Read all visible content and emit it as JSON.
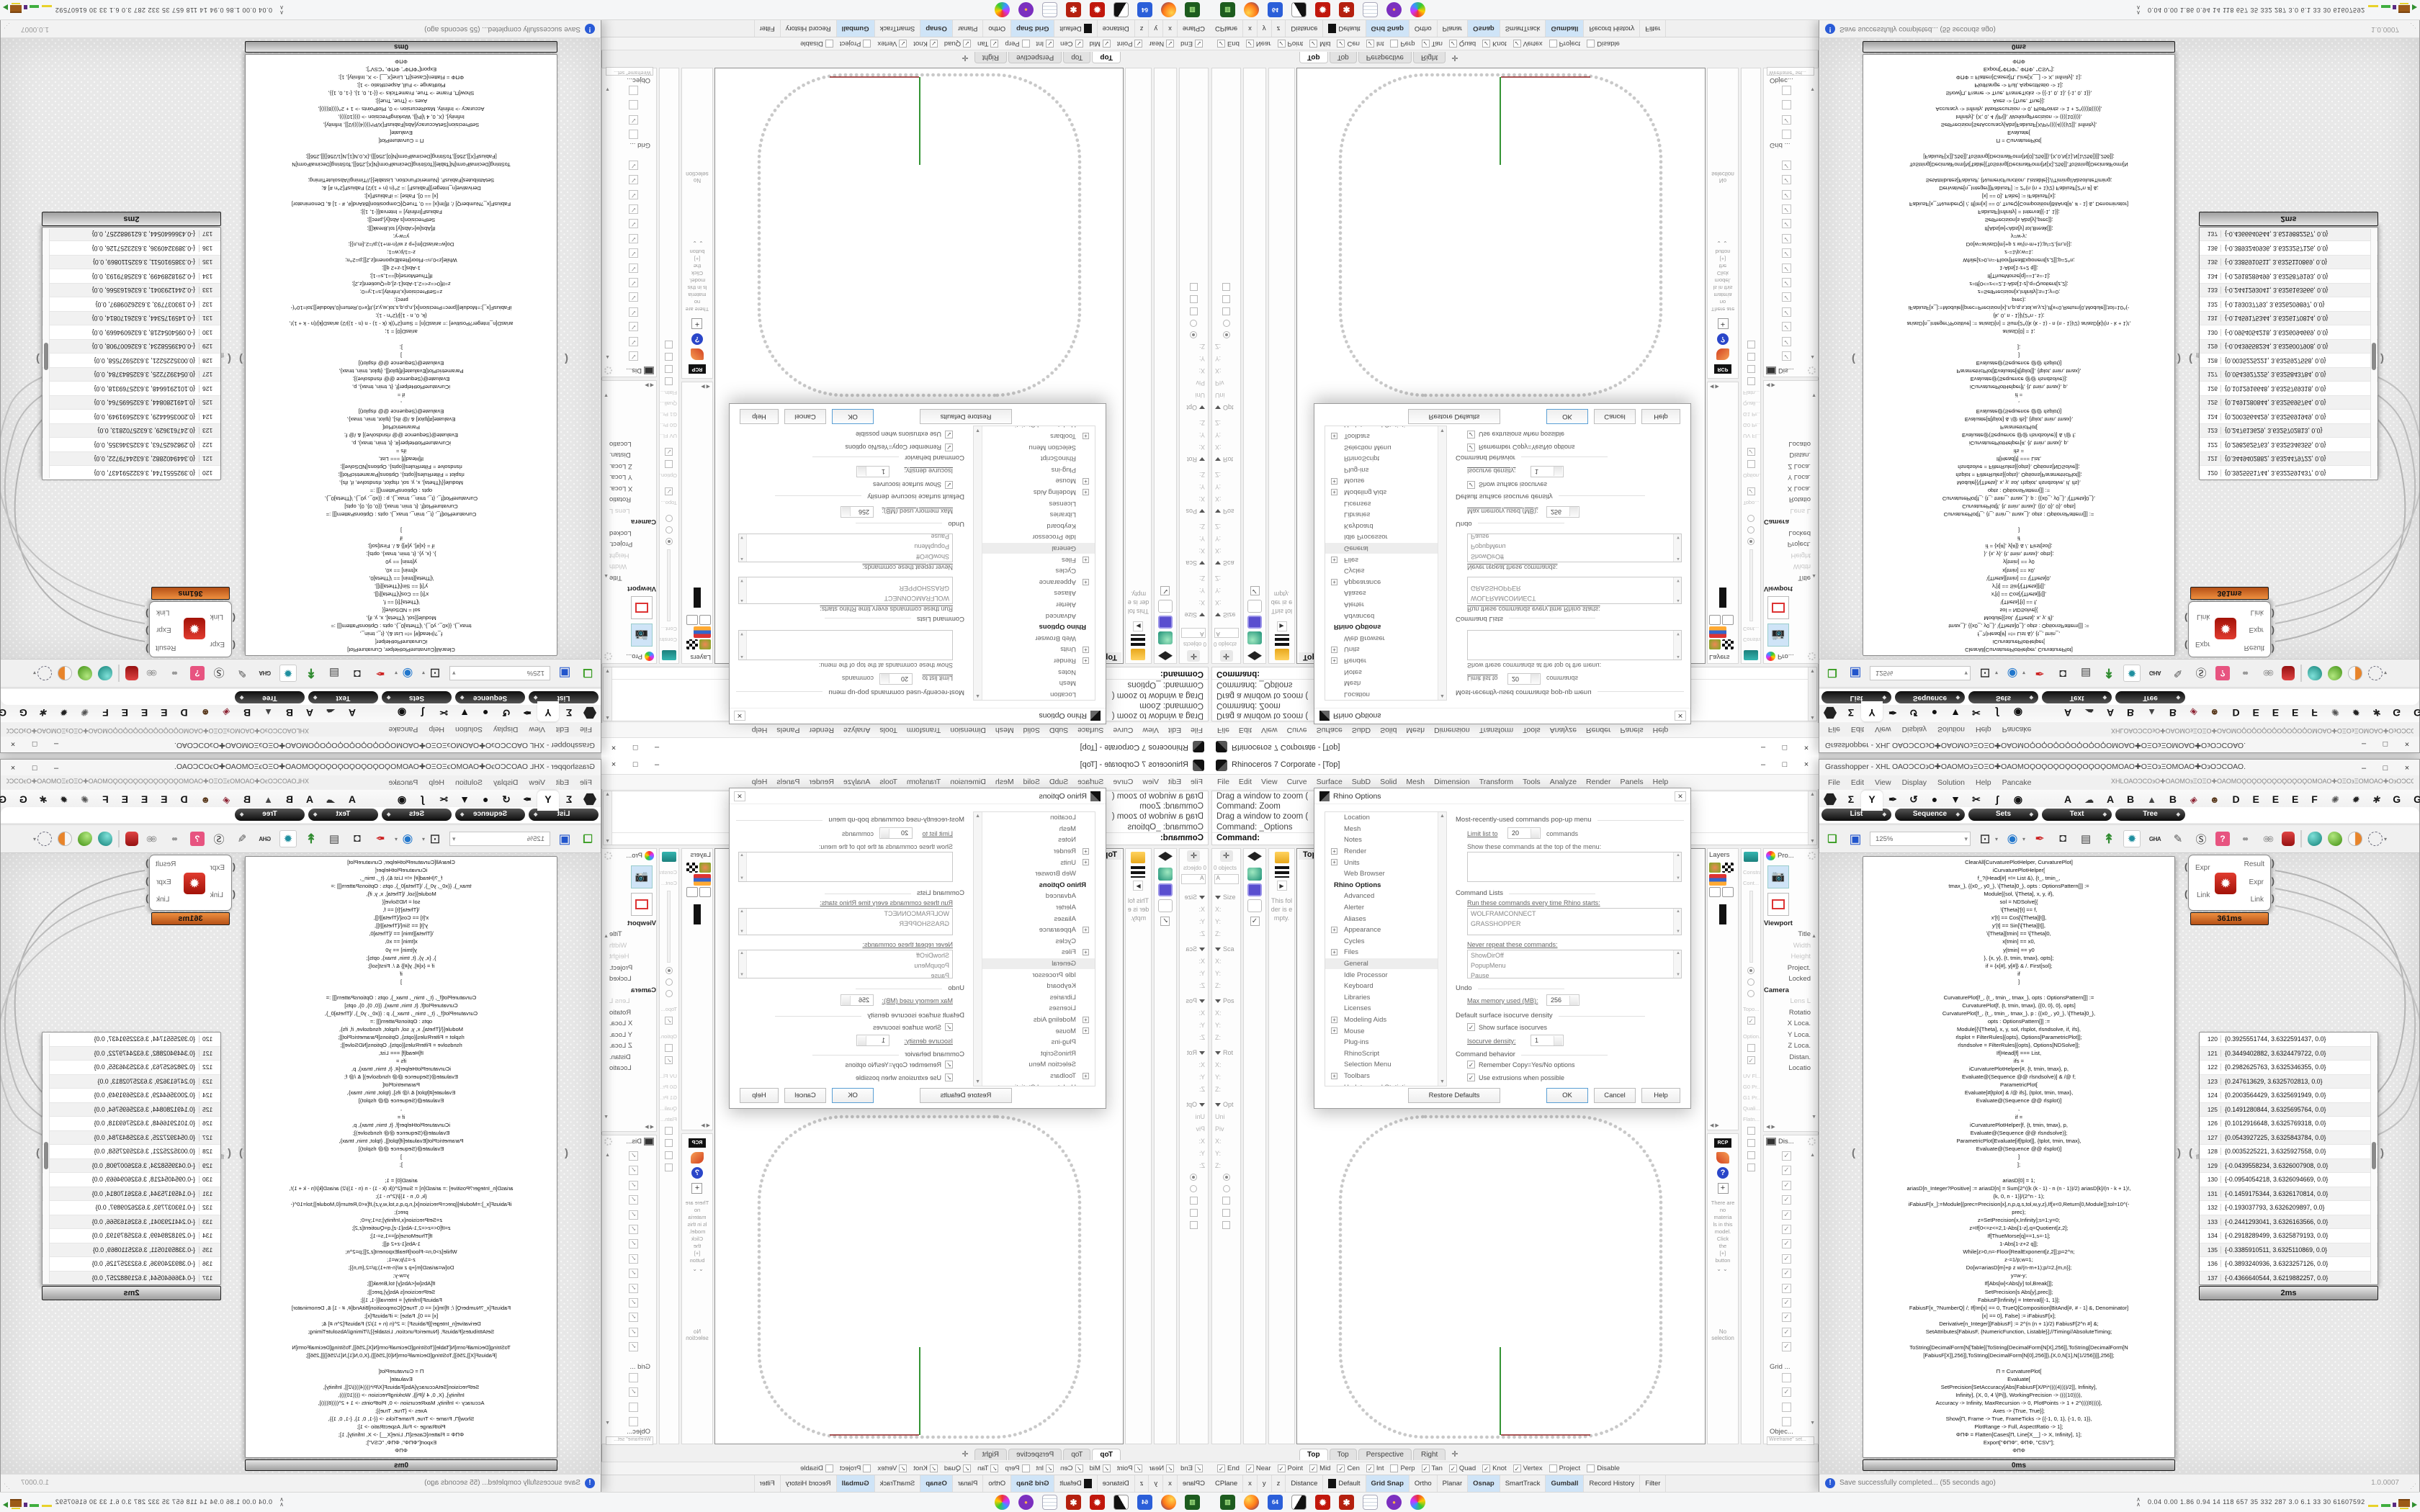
{
  "colors": {
    "gh_profiler_orange": "#d06a22",
    "gh_profiler_gray": "#bdbdbd",
    "status_active_blue": "#cfe4f7",
    "axis_green": "#007a00",
    "axis_red": "#8b1a1a",
    "mathematica_red": "#c1170c",
    "canvas_gray": "#e8e8e8"
  },
  "rhino": {
    "title": "Rhinoceros 7 Corporate - [Top]",
    "window_controls": [
      "–",
      "□",
      "×"
    ],
    "menu": [
      "File",
      "Edit",
      "View",
      "Curve",
      "Surface",
      "SubD",
      "Solid",
      "Mesh",
      "Dimension",
      "Transform",
      "Tools",
      "Analyze",
      "Render",
      "Panels",
      "Help"
    ],
    "command_lines": [
      "Drag a window to zoom (",
      "Command: Zoom",
      "Drag a window to zoom (",
      "Command: _Options"
    ],
    "command_prompt": "Command:",
    "boxedit": {
      "count_label": "0 objects",
      "field_value": "A",
      "rows": [
        {
          "t": "Size",
          "s": true
        },
        {
          "t": "X:"
        },
        {
          "t": "Y:"
        },
        {
          "t": "Z:"
        },
        {
          "t": "Sca",
          "s": true
        },
        {
          "t": "X:"
        },
        {
          "t": "Y:"
        },
        {
          "t": "Z:"
        },
        {
          "t": "Pos",
          "s": true
        },
        {
          "t": "X:"
        },
        {
          "t": "Y:"
        },
        {
          "t": "Z:"
        },
        {
          "t": "Rot",
          "s": true
        },
        {
          "t": "X:"
        },
        {
          "t": "Y:"
        },
        {
          "t": "Z:"
        },
        {
          "t": "Opt",
          "s": true
        },
        {
          "t": "Uni"
        },
        {
          "t": "Piv"
        },
        {
          "t": "X:"
        },
        {
          "t": "Y:"
        },
        {
          "t": "Z:"
        }
      ]
    },
    "folder_note": "This folder is empty.",
    "viewport": {
      "label": "Top",
      "tabs": [
        {
          "t": "Top",
          "a": true
        },
        {
          "t": "Top"
        },
        {
          "t": "Perspective"
        },
        {
          "t": "Right"
        }
      ],
      "new_tab": "✛"
    },
    "layers_panel": {
      "tab": "Layers"
    },
    "mid_panel": {
      "labels": [
        {
          "t": "Constra..."
        },
        {
          "t": "Cont..."
        }
      ],
      "labels2": [
        {
          "t": "Topo..."
        }
      ],
      "labels3": [
        {
          "t": "Option..."
        }
      ],
      "labels4": [
        {
          "t": "UV Fl..."
        },
        {
          "t": "G0 Pr..."
        },
        {
          "t": "G1 Pr..."
        },
        {
          "t": "Quali..."
        },
        {
          "t": "Flatn..."
        }
      ]
    },
    "properties_panel": {
      "tab": "Pro...",
      "rows": [
        {
          "t": "Viewport",
          "b": true
        },
        {
          "t": "Title"
        },
        {
          "t": "Width",
          "d": true
        },
        {
          "t": "Height",
          "d": true
        },
        {
          "t": "Project."
        },
        {
          "t": "Locked"
        },
        {
          "t": "Camera",
          "b": true
        },
        {
          "t": "Lens L",
          "d": true
        },
        {
          "t": "Rotatio"
        },
        {
          "t": "X Loca."
        },
        {
          "t": "Y Loca."
        },
        {
          "t": "Z Loca."
        },
        {
          "t": "Distan."
        },
        {
          "t": "Locatio"
        }
      ]
    },
    "materials_panel": {
      "rcp": "RCP",
      "empty_lines": "There are\nno\nmateria\nls in this\nmodel.\nClick\nthe\n[+]\nbutton",
      "chev": "⌄⌄",
      "no_selection": "No selection"
    },
    "display_panel": {
      "tab": "Dis...",
      "grid_label": "Grid ...",
      "object_label": "Objec...",
      "wireframe_field": "Wireframe\" set..."
    },
    "osnap": [
      {
        "t": "End",
        "c": true
      },
      {
        "t": "Near",
        "c": true
      },
      {
        "t": "Point",
        "c": true
      },
      {
        "t": "Mid",
        "c": true
      },
      {
        "t": "Cen",
        "c": true
      },
      {
        "t": "Int",
        "c": true
      },
      {
        "t": "Perp"
      },
      {
        "t": "Tan",
        "c": true
      },
      {
        "t": "Quad",
        "c": true
      },
      {
        "t": "Knot",
        "c": true
      },
      {
        "t": "Vertex",
        "c": true
      },
      {
        "t": "Project"
      },
      {
        "t": "Disable"
      }
    ],
    "statusbar": [
      {
        "t": "CPlane"
      },
      {
        "t": "x"
      },
      {
        "t": "y"
      },
      {
        "t": "z"
      },
      {
        "t": "Distance"
      },
      {
        "t": "Default",
        "sw": true
      },
      {
        "t": "Grid Snap",
        "a": true
      },
      {
        "t": "Ortho"
      },
      {
        "t": "Planar"
      },
      {
        "t": "Osnap",
        "a": true
      },
      {
        "t": "SmartTrack"
      },
      {
        "t": "Gumball",
        "a": true
      },
      {
        "t": "Record History"
      },
      {
        "t": "Filter"
      }
    ],
    "options_dialog": {
      "title": "Rhino Options",
      "tree": [
        {
          "t": "Location"
        },
        {
          "t": "Mesh"
        },
        {
          "t": "Notes"
        },
        {
          "t": "Render",
          "plus": true
        },
        {
          "t": "Units",
          "plus": true
        },
        {
          "t": "Web Browser"
        },
        {
          "t": "Rhino Options",
          "b": true
        },
        {
          "t": "Advanced"
        },
        {
          "t": "Alerter"
        },
        {
          "t": "Aliases"
        },
        {
          "t": "Appearance",
          "plus": true
        },
        {
          "t": "Cycles"
        },
        {
          "t": "Files",
          "plus": true
        },
        {
          "t": "General",
          "sel": true
        },
        {
          "t": "Idle Processor"
        },
        {
          "t": "Keyboard"
        },
        {
          "t": "Libraries"
        },
        {
          "t": "Licenses"
        },
        {
          "t": "Modeling Aids",
          "plus": true
        },
        {
          "t": "Mouse",
          "plus": true
        },
        {
          "t": "Plug-ins"
        },
        {
          "t": "RhinoScript"
        },
        {
          "t": "Selection Menu"
        },
        {
          "t": "Toolbars",
          "plus": true
        },
        {
          "t": "Updates and Statistics"
        },
        {
          "t": "View",
          "plus": true
        }
      ],
      "mru_header": "Most-recently-used commands pop-up menu",
      "limit_label": "Limit list to",
      "limit_value": "20",
      "limit_suffix": "commands",
      "show_label": "Show these commands at the top of the menu:",
      "cmdlists_header": "Command Lists",
      "run_label": "Run these commands every time Rhino starts:",
      "run_items": [
        "WOLFRAMCONNECT",
        "GRASSHOPPER"
      ],
      "never_label": "Never repeat these commands:",
      "never_items": [
        "ShowDirOff",
        "PopupMenu",
        "Pause"
      ],
      "undo_header": "Undo",
      "memory_label": "Max memory used (MB):",
      "memory_value": "256",
      "iso_header": "Default surface isocurve density",
      "iso_check": "Show surface isocurves",
      "density_label": "Isocurve density:",
      "density_value": "1",
      "behavior_header": "Command behavior",
      "behavior_checks": [
        {
          "t": "Remember Copy=Yes/No options",
          "c": true
        },
        {
          "t": "Use extrusions when possible",
          "c": true
        }
      ],
      "buttons": {
        "restore": "Restore Defaults",
        "ok": "OK",
        "cancel": "Cancel",
        "help": "Help"
      }
    }
  },
  "grasshopper": {
    "title": "Grasshopper - XHL ΟΑΟϽϹΟ϶Ο✚ΟΑΟΜΟ϶ΞΟΞΟ✚ΟΑΟΜΟϘΟϘΟϘΟϘΟϘΟϘΟϘΟΜΟΑΟ✚ΟΞΟ϶ΞΟΜΟΑΟ✚Ο϶ΟϽϹΟΑΟ.",
    "doc_name": "XHLΟΑΟϽϹΟ϶Ο✚ΟΑΟΜΟ϶ΞΟΞΟ✚ΟΑΟΜΟϘΟϘΟϘΟϘΟϘΟϘΟϘΟΜΟΑΟ✚ΟΞΟ϶ΞΟΜΟΑΟ✚Ο϶ΟϽϹΟΑΟ.",
    "window_controls": [
      "–",
      "□",
      "×"
    ],
    "menu": [
      "File",
      "Edit",
      "View",
      "Display",
      "Solution",
      "Help",
      "Pancake"
    ],
    "category_icons": [
      {
        "icon": "params",
        "glyph": ""
      },
      {
        "icon": "maths",
        "glyph": "Σ"
      },
      {
        "icon": "sets",
        "glyph": "Y",
        "sel": true
      },
      {
        "icon": "vector",
        "glyph": "✒"
      },
      {
        "icon": "curve",
        "glyph": "↺"
      },
      {
        "icon": "surface",
        "glyph": "●"
      },
      {
        "icon": "mesh",
        "glyph": "▼"
      },
      {
        "icon": "intersect",
        "glyph": "✂"
      },
      {
        "icon": "transform",
        "glyph": "ʃ"
      },
      {
        "icon": "display",
        "glyph": "◉"
      }
    ],
    "plugin_tabs": [
      {
        "label": "A"
      },
      {
        "icon": "cloud"
      },
      {
        "label": "A"
      },
      {
        "label": "B"
      },
      {
        "icon": "mountain"
      },
      {
        "label": "B"
      },
      {
        "icon": "shield"
      },
      {
        "icon": "bird"
      },
      {
        "label": "D"
      },
      {
        "label": "E"
      },
      {
        "label": "E"
      },
      {
        "label": "E"
      },
      {
        "label": "F"
      },
      {
        "icon": "fly"
      },
      {
        "icon": "beetle"
      },
      {
        "icon": "ant"
      },
      {
        "label": "G"
      },
      {
        "label": "G"
      }
    ],
    "groups": [
      "List",
      "Sequence",
      "Sets",
      "Text",
      "Tree"
    ],
    "zoom_level": "125%",
    "toolbar_icons": [
      "new-document",
      "save",
      "zoom-extents",
      "preview-eye",
      "sketch-quill",
      "display-dark",
      "speaker",
      "green-tower",
      "rosette",
      "gha",
      "notes",
      "finder",
      "package",
      "spheres",
      "rings",
      "barrel",
      "divider",
      "paint-teal",
      "paint-green",
      "sphere-orange",
      "selection-region"
    ],
    "component": {
      "inputs": [
        {
          "t": "Expr"
        },
        {
          "t": "Link"
        }
      ],
      "outputs": [
        {
          "t": "Result"
        },
        {
          "t": "Expr"
        },
        {
          "t": "Link"
        }
      ],
      "time": "361ms"
    },
    "code_panel": {
      "time": "0ms",
      "code": "ClearAll[CurvaturePlotHelper, CurvaturePlot]\niCurvaturePlotHelper[\nf_?(Head[#] =!= List &), {t_, tmin_,\ntmax_}, {{x0_, y0_}, \\[Theta]0_}, opts : OptionsPattern[]] :=\nModule[{sol, \\[Theta], x, y, if},\nsol = NDSolve[{\n\\[Theta]'[t] == f,\nx'[t] == Cos[\\[Theta][t]],\ny'[t] == Sin[\\[Theta][t]],\n\\[Theta][tmin] == \\[Theta]0,\nx[tmin] == x0,\ny[tmin] == y0\n}, {x, y}, {t, tmin, tmax}, opts];\nif = {x[#], y[#]} & /. First[sol];\nif\n]\n\nCurvaturePlot[f_, {t_, tmin_, tmax_}, opts : OptionsPattern[]] :=\nCurvaturePlot[f, {t, tmin, tmax}, {{0, 0}, 0}, opts]\nCurvaturePlot[f_, {t_, tmin_, tmax_}, p : {{x0_, y0_}, \\[Theta]0_},\nopts : OptionsPattern[]] :=\nModule[{\\[Theta], x, y, sol, rlsplot, rlsndsolve, if, ifs},\nrlsplot = FilterRules[{opts}, Options[ParametricPlot]];\nrlsndsolve = FilterRules[{opts}, Options[NDSolve]];\nIf[Head[f] === List,\nifs =\niCurvaturePlotHelper[#, {t, tmin, tmax}, p,\nEvaluate@(Sequence @@ rlsndsolve)] & /@ f;\nParametricPlot[\nEvaluate[#[tplot] & /@ ifs], {tplot, tmin, tmax},\nEvaluate@(Sequence @@ rlsplot)]\n,\nif =\niCurvaturePlotHelper[f, {t, tmin, tmax}, p,\nEvaluate@(Sequence @@ rlsndsolve)];\nParametricPlot[Evaluate[if[tplot]], {tplot, tmin, tmax},\nEvaluate@(Sequence @@ rlsplot)]\n]\n];\n\nariasD[0] = 1;\nariasD[n_Integer?Positive] := ariasD[n] = Sum[2^((k (k - 1) - n (n - 1))/2) ariasD[k]/(n - k + 1)!,\n{k, 0, n - 1}]/(2^n - 1);\niFabiusF[x_]:=Module[{prec=Precision[x],n,p,q,s,tol,w,y,z},If[x<0,Return[0,Module]];tol=10^(-\nprec);\nz=SetPrecision[x,Infinity];s=1;y=0;\nz=If[0<=z<=2,1-Abs[1-z],q=Quotient[z,2];\nIf[ThueMorse[q]==1,s=-1];\n1-Abs[1-z+2 q]];\nWhile[z>0,n=-Floor[RealExponent[z,2]];p=2^n;\nz-=1/p;w=1;\nDo[w=ariasD[m]+p z w/(n-m+1);p/=2,{m,n}];\ny=w-y;\nIf[Abs[w]<Abs[y] tol,Break[]];\nSetPrecision[s Abs[y],prec]];\nFabiusF[Infinity] = Interval[{-1, 1}];\nFabiusF[x_?NumberQ] /; If[Im[x] == 0, TrueQ[Composition[BitAnd[#, # - 1] &, Denominator]\n[x] == 0], False] := iFabiusF[x];\nDerivative[n_Integer][FabiusF] := 2^(n (n + 1)/2) FabiusF[2^n #] &;\nSetAttributes[FabiusF, {NumericFunction, Listable}];//Timing//AbsoluteTiming;\n\nToString[DecimalForm[N[Table[{ToString[DecimalForm[N[X],256]],ToString[DecimalForm[N\n[FabiusF[X]],256]],ToString[DecimalForm[N[0],256]]},{X,0,N[1],N[1/256]}]],256]];\n\nΠ = CurvaturePlot[\nEvaluate[\nSetPrecision[SetAccuracy[Abs[FabiusF[X/Pi*((((4))))/2]], Infinity],\nInfinity], {X, 0, 4 \\[Pi]}, WorkingPrecision -> ((((10)))),\nAccuracy -> Infinity, MaxRecursion -> 0, PlotPoints -> 1 + 2^((((8))))],\nAxes -> {True, True}];\nShow[Π, Frame -> True, FrameTicks -> {{-1, 0, 1}, {-1, 0, 1}},\nPlotRange -> Full, AspectRatio -> 1];\nΦΠΦ = Flatten[Cases[Π, Line[X__] -> X, Infinity], 1];\nExport[\"ΦΠΦ\", ΦΠΦ, \"CSV\"];\nΦΠΦ"
    },
    "list_panel": {
      "time": "2ms",
      "rows": [
        {
          "i": "120",
          "v": "{0.3925551744, 3.6322591437, 0.0}"
        },
        {
          "i": "121",
          "v": "{0.3449402882, 3.6324479722, 0.0}"
        },
        {
          "i": "122",
          "v": "{0.2982625763, 3.6325346355, 0.0}"
        },
        {
          "i": "123",
          "v": "{0.247613629, 3.6325702813, 0.0}"
        },
        {
          "i": "124",
          "v": "{0.2003564429, 3.6325691949, 0.0}"
        },
        {
          "i": "125",
          "v": "{0.1491280844, 3.6325695764, 0.0}"
        },
        {
          "i": "126",
          "v": "{0.1012916648, 3.6325769318, 0.0}"
        },
        {
          "i": "127",
          "v": "{0.0543927225, 3.6325843784, 0.0}"
        },
        {
          "i": "128",
          "v": "{0.0035225221, 3.6325927558, 0.0}"
        },
        {
          "i": "129",
          "v": "{-0.0439558234, 3.6326007908, 0.0}"
        },
        {
          "i": "130",
          "v": "{-0.0954054218, 3.6326094669, 0.0}"
        },
        {
          "i": "131",
          "v": "{-0.1459175344, 3.6326170814, 0.0}"
        },
        {
          "i": "132",
          "v": "{-0.193037793, 3.6326209897, 0.0}"
        },
        {
          "i": "133",
          "v": "{-0.2441293041, 3.6326163566, 0.0}"
        },
        {
          "i": "134",
          "v": "{-0.2918289499, 3.6325879193, 0.0}"
        },
        {
          "i": "135",
          "v": "{-0.3385910511, 3.6325110869, 0.0}"
        },
        {
          "i": "136",
          "v": "{-0.3893240936, 3.6323257126, 0.0}"
        },
        {
          "i": "137",
          "v": "{-0.4366640544, 3.6219882257, 0.0}"
        }
      ]
    },
    "statusbar": {
      "icon": "!",
      "message": "Save successfully completed... (55 seconds ago)",
      "version": "1.0.0007"
    }
  },
  "taskbar": {
    "icons": [
      "power-green",
      "firefox",
      "save64",
      "rhino",
      "mathematica",
      "red-gear",
      "notepad",
      "purple-app",
      "palette"
    ],
    "expand_chevron": "∧",
    "stats": "0.04 0.00 1.86 0.94   14   118   657   35   332   287   3.0   6.1   33   30  61607592"
  }
}
